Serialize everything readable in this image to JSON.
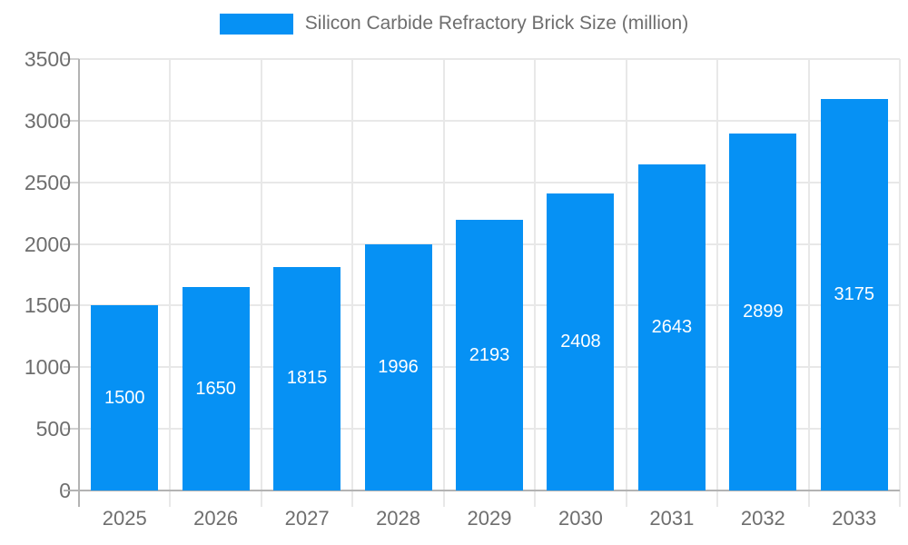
{
  "legend": {
    "label": "Silicon Carbide Refractory Brick Size (million)"
  },
  "colors": {
    "bar": "#0691f4",
    "grid": "#e8e8e8",
    "tick": "#cfcfcf",
    "axis_line": "#b3b3b3",
    "axis_text": "#6e6e6e",
    "bar_label": "#ffffff"
  },
  "chart_data": {
    "type": "bar",
    "title": "Silicon Carbide Refractory Brick Size (million)",
    "categories": [
      "2025",
      "2026",
      "2027",
      "2028",
      "2029",
      "2030",
      "2031",
      "2032",
      "2033"
    ],
    "series": [
      {
        "name": "Silicon Carbide Refractory Brick Size (million)",
        "values": [
          1500,
          1650,
          1815,
          1996,
          2193,
          2408,
          2643,
          2899,
          3175
        ]
      }
    ],
    "xlabel": "",
    "ylabel": "",
    "ylim": [
      0,
      3500
    ],
    "yticks": [
      0,
      500,
      1000,
      1500,
      2000,
      2500,
      3000,
      3500
    ],
    "grid": true,
    "legend_position": "top",
    "bar_labels_inside": true
  }
}
